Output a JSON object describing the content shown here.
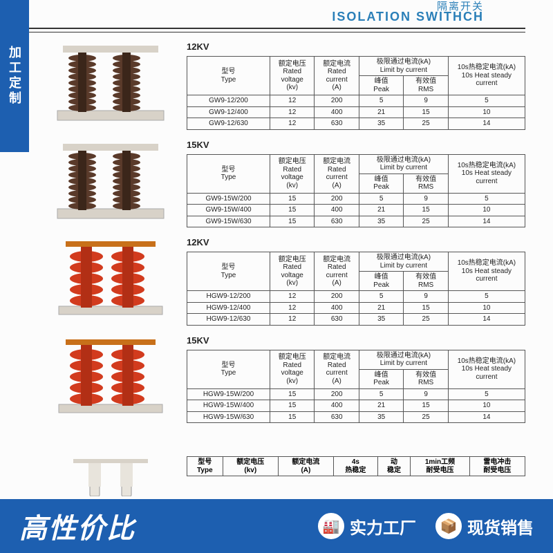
{
  "header": {
    "title_zh": "隔离开关",
    "title_en": "ISOLATION SWITHCH"
  },
  "left_ribbon": "加工定制",
  "columns": {
    "type": {
      "zh": "型号",
      "en": "Type"
    },
    "rated_voltage": {
      "zh": "额定电压",
      "en": "Rated voltage",
      "unit": "(kv)"
    },
    "rated_current": {
      "zh": "额定电流",
      "en": "Rated current",
      "unit": "(A)"
    },
    "limit": {
      "zh": "极限通过电流(kA)",
      "en": "Limit by current"
    },
    "peak": {
      "zh": "峰值",
      "en": "Peak"
    },
    "rms": {
      "zh": "有效值",
      "en": "RMS"
    },
    "heat": {
      "zh": "10s热稳定电流(kA)",
      "en": "10s Heat steady current"
    }
  },
  "sections": [
    {
      "voltage_label": "12KV",
      "product_style": "brown-disc",
      "rows": [
        {
          "type": "GW9-12/200",
          "kv": "12",
          "a": "200",
          "peak": "5",
          "rms": "9",
          "heat": "5"
        },
        {
          "type": "GW9-12/400",
          "kv": "12",
          "a": "400",
          "peak": "21",
          "rms": "15",
          "heat": "10"
        },
        {
          "type": "GW9-12/630",
          "kv": "12",
          "a": "630",
          "peak": "35",
          "rms": "25",
          "heat": "14"
        }
      ]
    },
    {
      "voltage_label": "15KV",
      "product_style": "brown-disc",
      "rows": [
        {
          "type": "GW9-15W/200",
          "kv": "15",
          "a": "200",
          "peak": "5",
          "rms": "9",
          "heat": "5"
        },
        {
          "type": "GW9-15W/400",
          "kv": "15",
          "a": "400",
          "peak": "21",
          "rms": "15",
          "heat": "10"
        },
        {
          "type": "GW9-15W/630",
          "kv": "15",
          "a": "630",
          "peak": "35",
          "rms": "25",
          "heat": "14"
        }
      ]
    },
    {
      "voltage_label": "12KV",
      "product_style": "red-shed",
      "rows": [
        {
          "type": "HGW9-12/200",
          "kv": "12",
          "a": "200",
          "peak": "5",
          "rms": "9",
          "heat": "5"
        },
        {
          "type": "HGW9-12/400",
          "kv": "12",
          "a": "400",
          "peak": "21",
          "rms": "15",
          "heat": "10"
        },
        {
          "type": "HGW9-12/630",
          "kv": "12",
          "a": "630",
          "peak": "35",
          "rms": "25",
          "heat": "14"
        }
      ]
    },
    {
      "voltage_label": "15KV",
      "product_style": "red-shed",
      "rows": [
        {
          "type": "HGW9-15W/200",
          "kv": "15",
          "a": "200",
          "peak": "5",
          "rms": "9",
          "heat": "5"
        },
        {
          "type": "HGW9-15W/400",
          "kv": "15",
          "a": "400",
          "peak": "21",
          "rms": "15",
          "heat": "10"
        },
        {
          "type": "HGW9-15W/630",
          "kv": "15",
          "a": "630",
          "peak": "35",
          "rms": "25",
          "heat": "14"
        }
      ]
    }
  ],
  "partial_table": {
    "product_style": "white-post",
    "cols": [
      "型号\nType",
      "额定电压\n(kv)",
      "额定电流\n(A)",
      "4s\n热稳定",
      "动\n稳定",
      "1min工频\n耐受电压",
      "雷电冲击\n耐受电压"
    ]
  },
  "banner": {
    "left": "高性价比",
    "items": [
      {
        "icon": "factory-icon",
        "text": "实力工厂"
      },
      {
        "icon": "box-icon",
        "text": "现货销售"
      }
    ]
  },
  "colors": {
    "brand_blue": "#1d5fb0",
    "header_blue": "#2a7fb8",
    "insulator_brown": "#5a3a2a",
    "insulator_red": "#d23b1e",
    "insulator_white": "#e8e4dc",
    "metal": "#d8d2c8",
    "copper": "#c8701a",
    "table_border": "#555555",
    "text": "#222222"
  }
}
